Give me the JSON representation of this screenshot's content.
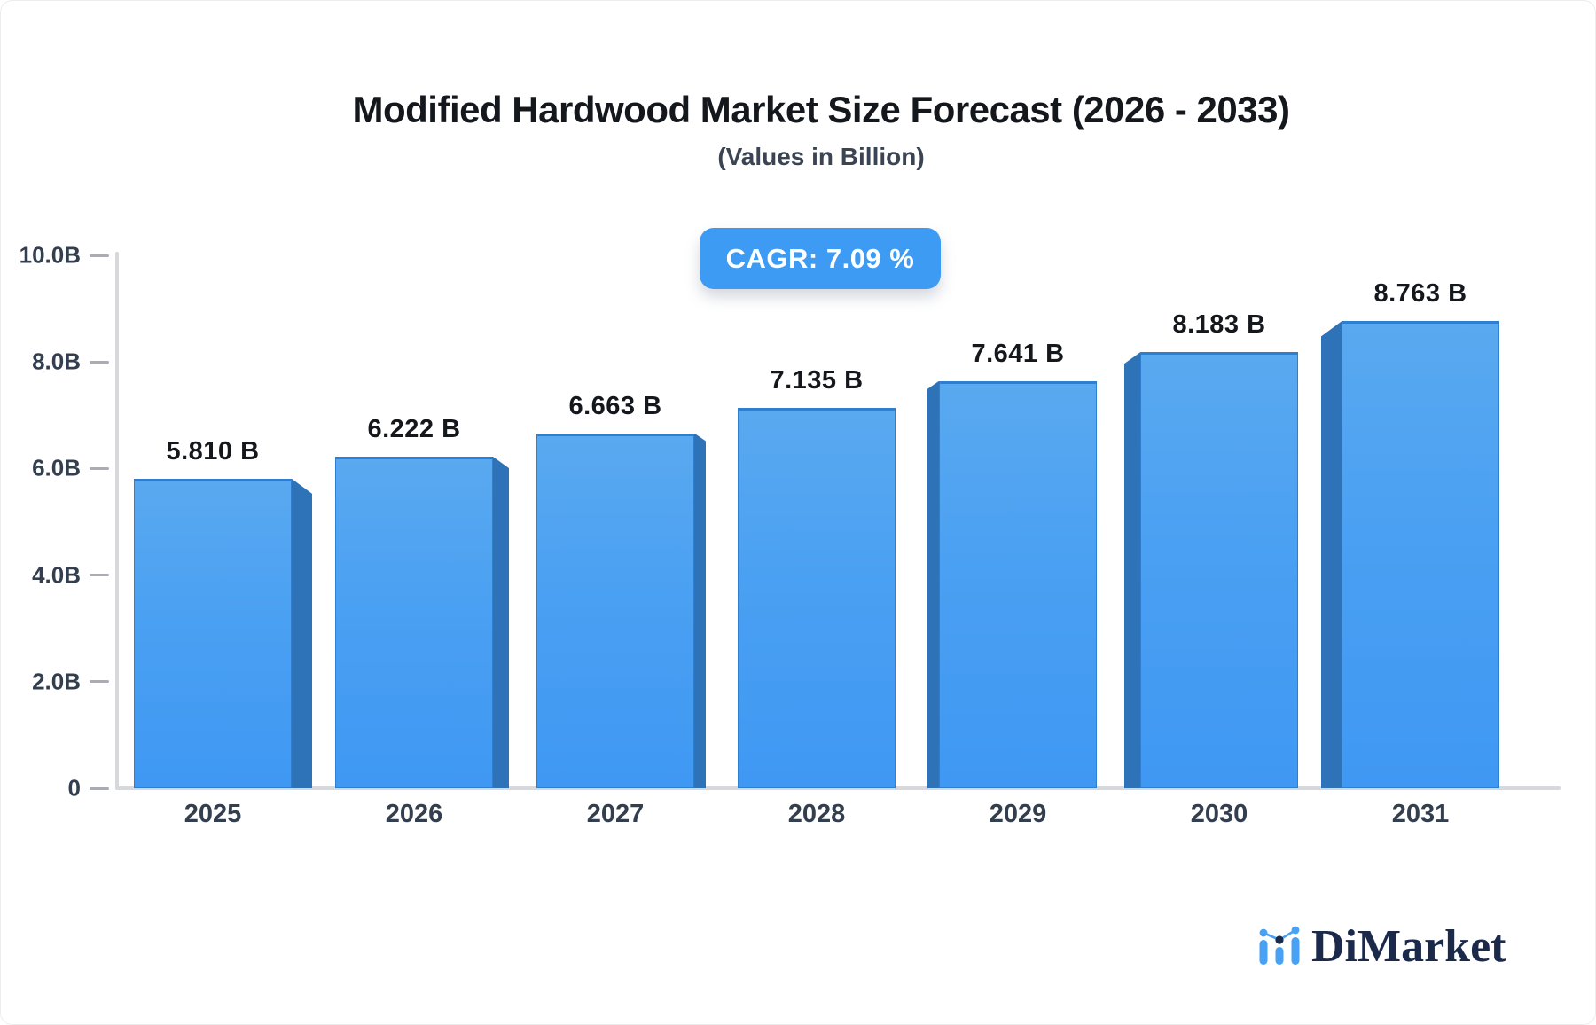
{
  "header": {
    "title": "Modified Hardwood Market Size Forecast (2026 - 2033)",
    "subtitle": "(Values in Billion)",
    "cagr_badge_label": "CAGR: 7.09 %"
  },
  "footer": {
    "brand_name": "DiMarket",
    "brand_icon": "mini-bar-chart-logo-icon"
  },
  "chart_data": {
    "type": "bar",
    "title": "Modified Hardwood Market Size Forecast (2026 - 2033)",
    "subtitle": "(Values in Billion)",
    "annotation": "CAGR: 7.09 %",
    "categories": [
      "2025",
      "2026",
      "2027",
      "2028",
      "2029",
      "2030",
      "2031"
    ],
    "values": [
      5.81,
      6.222,
      6.663,
      7.135,
      7.641,
      8.183,
      8.763
    ],
    "value_labels": [
      "5.810 B",
      "6.222 B",
      "6.663 B",
      "7.135 B",
      "7.641 B",
      "8.183 B",
      "8.763 B"
    ],
    "ylim": [
      0,
      10
    ],
    "yticks": [
      {
        "value": 0,
        "label": "0"
      },
      {
        "value": 2,
        "label": "2.0B"
      },
      {
        "value": 4,
        "label": "4.0B"
      },
      {
        "value": 6,
        "label": "6.0B"
      },
      {
        "value": 8,
        "label": "8.0B"
      },
      {
        "value": 10,
        "label": "10.0B"
      }
    ],
    "grid": false,
    "legend": "none",
    "bar_style": "3d-center-perspective",
    "colors": {
      "bar_top": "#59a9f0",
      "bar_bottom": "#3f98f3",
      "bar_edge": "#2f7fd0",
      "bar_side": "#2e73b8",
      "badge_background": "#3d9bf4",
      "badge_text": "#ffffff",
      "axis_line": "#d6d8db",
      "tick_text": "#333e4f",
      "logo_blue": "#47a1f5",
      "logo_navy": "#1b2a4a"
    }
  }
}
